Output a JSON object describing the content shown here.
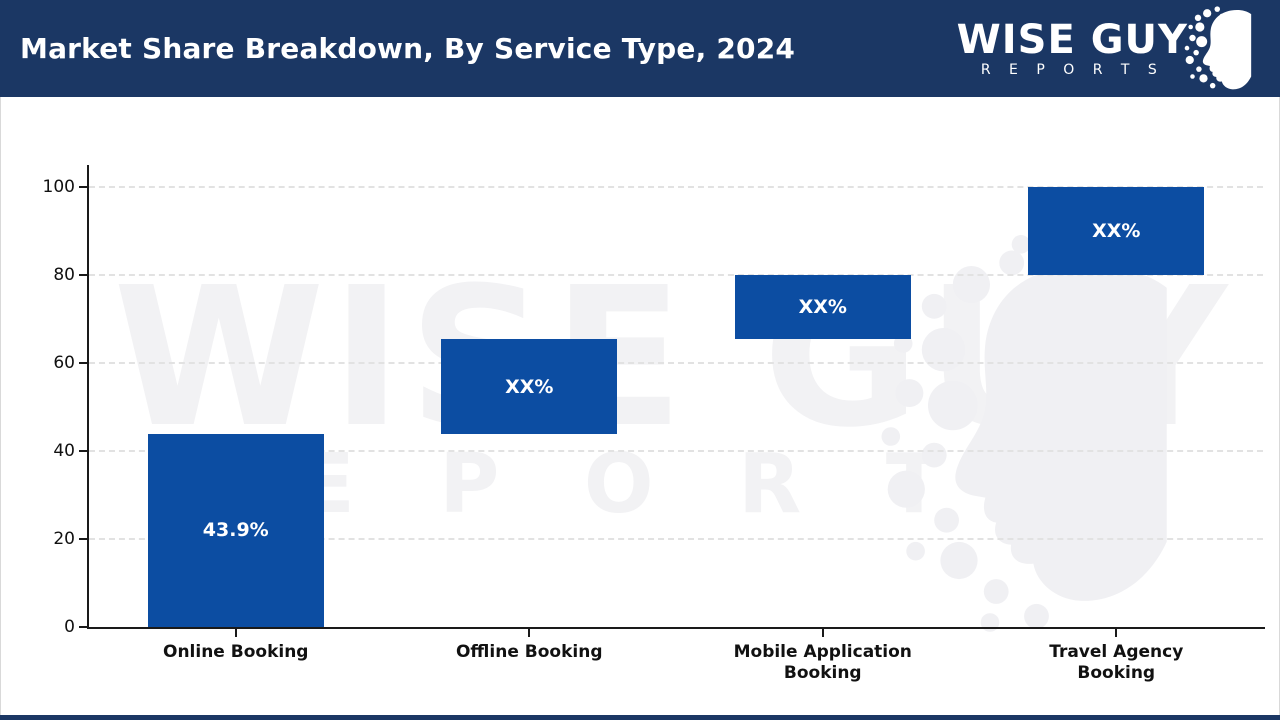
{
  "header": {
    "title": "Market Share Breakdown, By Service Type, 2024",
    "logo": {
      "line1": "WISE GUY",
      "line2": "R E P O R T S",
      "face_icon": "head-profile-dots-icon"
    }
  },
  "watermark": {
    "line1": "WISE GUY",
    "line2": "R E P O R T S"
  },
  "colors": {
    "header_bg": "#1b3764",
    "bar_fill": "#0c4da2",
    "grid": "#e2e2e2",
    "axis": "#1a1a1a",
    "watermark": "#f2f2f4",
    "title_text": "#ffffff",
    "bar_label_text": "#ffffff"
  },
  "chart_data": {
    "type": "bar",
    "subtype": "waterfall",
    "title": "Market Share Breakdown, By Service Type, 2024",
    "xlabel": "",
    "ylabel": "",
    "ylim": [
      0,
      100
    ],
    "yticks": [
      0,
      20,
      40,
      60,
      80,
      100
    ],
    "grid": "horizontal-dashed",
    "legend": "none",
    "categories": [
      "Online Booking",
      "Offline Booking",
      "Mobile Application\nBooking",
      "Travel Agency\nBooking"
    ],
    "series": [
      {
        "name": "Market Share (%)",
        "segments": [
          {
            "category": "Online Booking",
            "start": 0,
            "end": 43.9,
            "value": 43.9,
            "label": "43.9%"
          },
          {
            "category": "Offline Booking",
            "start": 43.9,
            "end": 65.4,
            "value": 21.5,
            "label": "XX%"
          },
          {
            "category": "Mobile Application Booking",
            "start": 65.4,
            "end": 80,
            "value": 14.6,
            "label": "XX%"
          },
          {
            "category": "Travel Agency Booking",
            "start": 80,
            "end": 100,
            "value": 20,
            "label": "XX%"
          }
        ]
      }
    ]
  }
}
